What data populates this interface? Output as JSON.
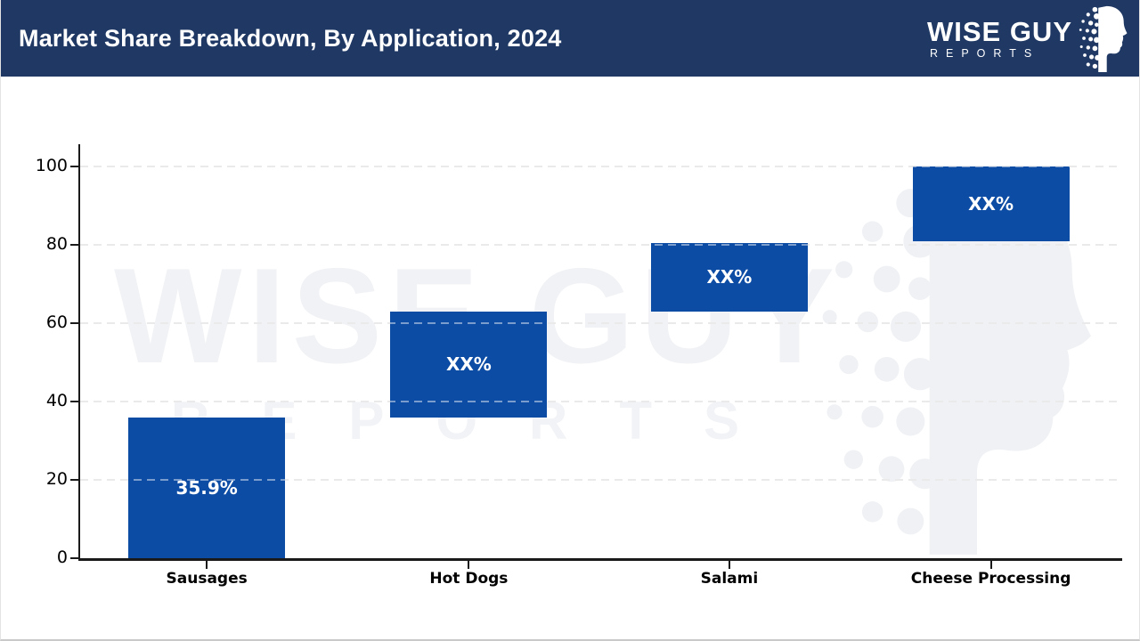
{
  "header": {
    "title": "Market Share Breakdown, By Application, 2024",
    "background_color": "#1f3864",
    "logo": {
      "line1": "WISE GUY",
      "line2": "REPORTS"
    }
  },
  "watermark": {
    "line1": "WISE GUY",
    "line2": "REPORTS"
  },
  "chart_data": {
    "type": "bar",
    "subtype": "waterfall",
    "title": "Market Share Breakdown, By Application, 2024",
    "categories": [
      "Sausages",
      "Hot Dogs",
      "Salami",
      "Cheese Processing"
    ],
    "series": [
      {
        "name": "Market Share",
        "segments": [
          {
            "category": "Sausages",
            "start": 0,
            "end": 35.9,
            "label": "35.9%"
          },
          {
            "category": "Hot Dogs",
            "start": 36,
            "end": 63,
            "label": "XX%"
          },
          {
            "category": "Salami",
            "start": 63,
            "end": 80.5,
            "label": "XX%"
          },
          {
            "category": "Cheese Processing",
            "start": 81,
            "end": 100,
            "label": "XX%"
          }
        ]
      }
    ],
    "y_ticks": [
      0,
      20,
      40,
      60,
      80,
      100
    ],
    "ylim": [
      0,
      105.7
    ],
    "xlabel": "",
    "ylabel": "",
    "grid": "horizontal-dashed",
    "legend": "none",
    "bar_color": "#0d4ca4",
    "bar_label_color": "#ffffff",
    "axis_color": "#1a1a1a",
    "gridline_color": "#d9d9d9"
  }
}
